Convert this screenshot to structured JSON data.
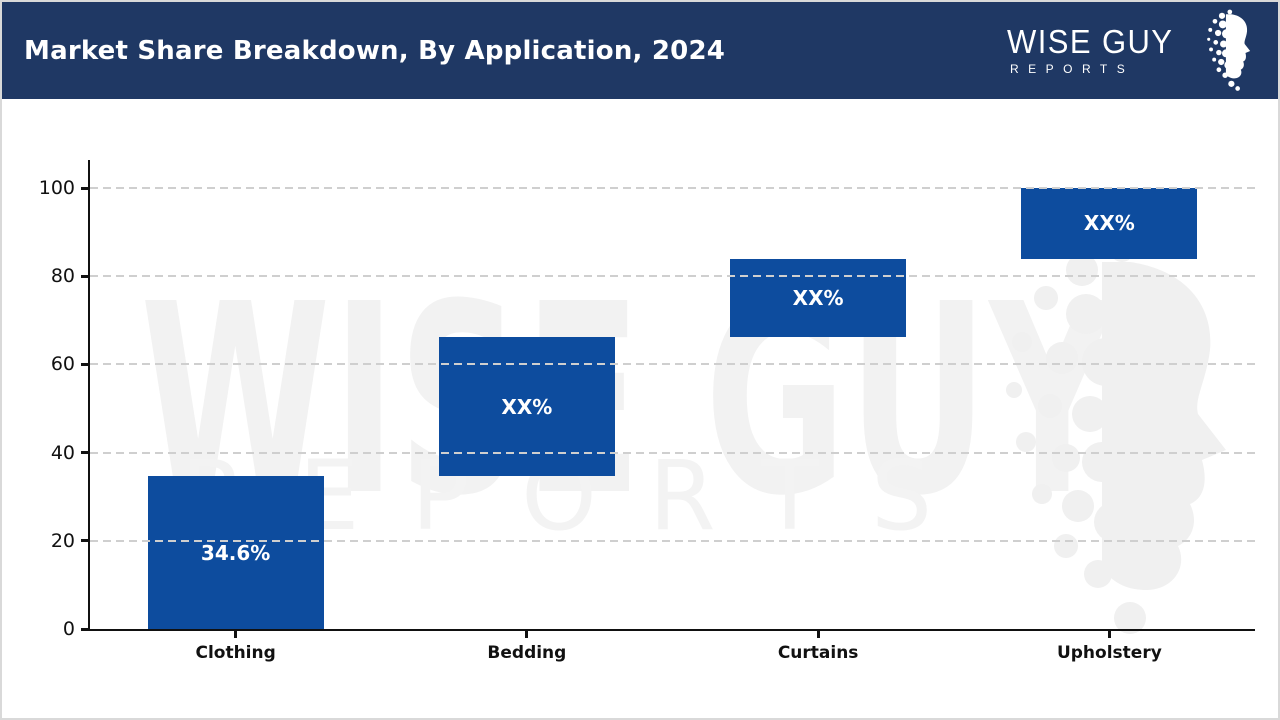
{
  "header": {
    "title": "Market Share Breakdown, By Application, 2024",
    "logo": {
      "line1": "WISE GUY",
      "line2": "REPORTS"
    }
  },
  "watermark": {
    "line1": "WISE GUY",
    "line2": "REPORTS"
  },
  "colors": {
    "header_bg": "#1f3864",
    "bar": "#0d4c9e",
    "grid": "#cfcfcf",
    "axis": "#111111",
    "bar_label": "#ffffff",
    "watermark": "#f2f2f2",
    "page_border": "#d9d9d9"
  },
  "chart_data": {
    "type": "bar",
    "variant": "waterfall",
    "title": "Market Share Breakdown, By Application, 2024",
    "categories": [
      "Clothing",
      "Bedding",
      "Curtains",
      "Upholstery"
    ],
    "segments": [
      {
        "category": "Clothing",
        "start": 0,
        "end": 34.6,
        "label": "34.6%"
      },
      {
        "category": "Bedding",
        "start": 34.6,
        "end": 66.1,
        "label": "XX%"
      },
      {
        "category": "Curtains",
        "start": 66.1,
        "end": 84.0,
        "label": "XX%"
      },
      {
        "category": "Upholstery",
        "start": 84.0,
        "end": 100.0,
        "label": "XX%"
      }
    ],
    "series": [
      {
        "name": "Market Share",
        "values": [
          34.6,
          31.5,
          17.9,
          16.0
        ]
      }
    ],
    "ylim": [
      0,
      100
    ],
    "yticks": [
      0,
      20,
      40,
      60,
      80,
      100
    ],
    "xlabel": "",
    "ylabel": "",
    "grid": "horizontal-dashed",
    "legend": "none"
  }
}
